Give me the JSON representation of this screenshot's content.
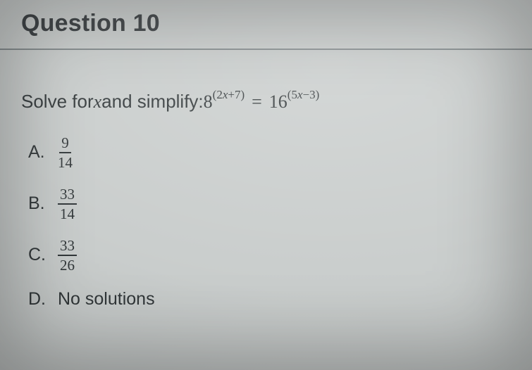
{
  "colors": {
    "background": "#c8cccb",
    "text": "#2e3436",
    "divider": "#7f8789",
    "frac_rule": "#2e3436"
  },
  "typography": {
    "title_fontsize": 34,
    "title_weight": 700,
    "prompt_fontsize": 26,
    "option_fontsize": 24,
    "frac_fontsize": 21,
    "superscript_fontsize": 17,
    "math_family": "Georgia, 'Times New Roman', serif",
    "ui_family": "Helvetica Neue, Arial, sans-serif"
  },
  "header": {
    "title": "Question 10"
  },
  "prompt": {
    "lead": "Solve for ",
    "variable": "x",
    "tail": " and simplify:  ",
    "lhs_base": "8",
    "lhs_exp_open": "(2",
    "lhs_exp_var": "x",
    "lhs_exp_rest": "+7)",
    "equals": " = ",
    "rhs_base": "16",
    "rhs_exp_open": "(5",
    "rhs_exp_var": "x",
    "rhs_exp_rest": "−3)"
  },
  "options": {
    "A": {
      "letter": "A.",
      "type": "fraction",
      "num": "9",
      "den": "14"
    },
    "B": {
      "letter": "B.",
      "type": "fraction",
      "num": "33",
      "den": "14"
    },
    "C": {
      "letter": "C.",
      "type": "fraction",
      "num": "33",
      "den": "26"
    },
    "D": {
      "letter": "D.",
      "type": "text",
      "text": "No solutions"
    }
  }
}
